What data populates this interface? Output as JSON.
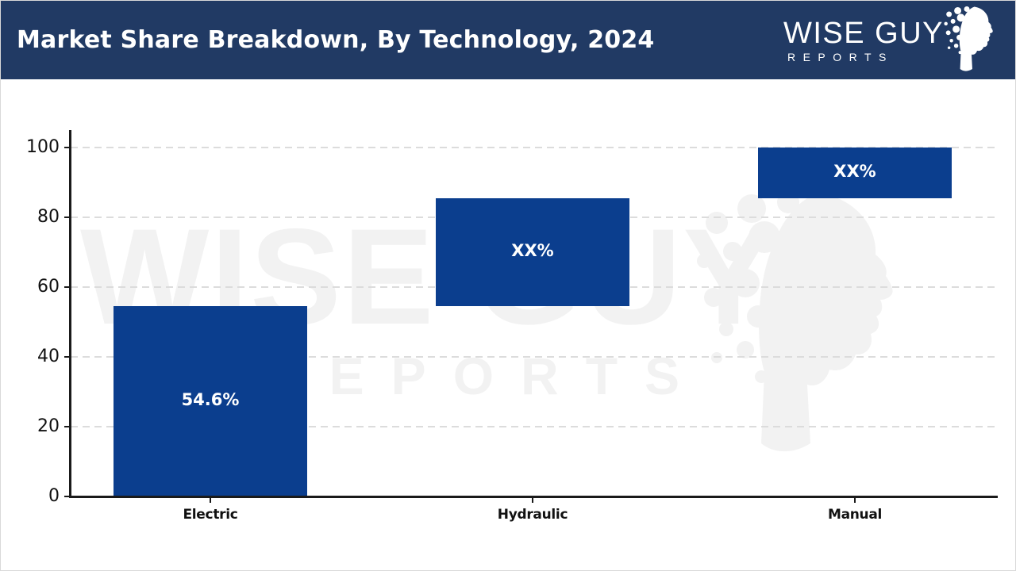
{
  "header": {
    "title": "Market Share Breakdown, By Technology, 2024",
    "logo_line1": "WISE GUY",
    "logo_line2": "REPORTS"
  },
  "watermark": {
    "line1": "WISE GUY",
    "line2": "REPORTS"
  },
  "chart_data": {
    "type": "bar",
    "subtype": "waterfall-stacked",
    "title": "Market Share Breakdown, By Technology, 2024",
    "categories": [
      "Electric",
      "Hydraulic",
      "Manual"
    ],
    "segments": [
      {
        "category": "Electric",
        "start": 0,
        "end": 54.6,
        "value": 54.6,
        "label": "54.6%"
      },
      {
        "category": "Hydraulic",
        "start": 54.6,
        "end": 85.4,
        "value": 30.8,
        "label": "XX%"
      },
      {
        "category": "Manual",
        "start": 85.4,
        "end": 100,
        "value": 14.6,
        "label": "XX%"
      }
    ],
    "xlabel": "",
    "ylabel": "",
    "yticks": [
      0,
      20,
      40,
      60,
      80,
      100
    ],
    "ylim": [
      0,
      105
    ],
    "grid": "horizontal-dashed",
    "legend": "none",
    "bar_color": "#0b3e8e",
    "bar_label_color": "#ffffff"
  },
  "colors": {
    "header_bg": "#213a64",
    "header_text": "#ffffff",
    "bar": "#0b3e8e",
    "axis": "#1a1a1a",
    "grid": "#dcdcdc",
    "watermark": "#f2f2f2",
    "page_border": "#d9d9d9"
  }
}
